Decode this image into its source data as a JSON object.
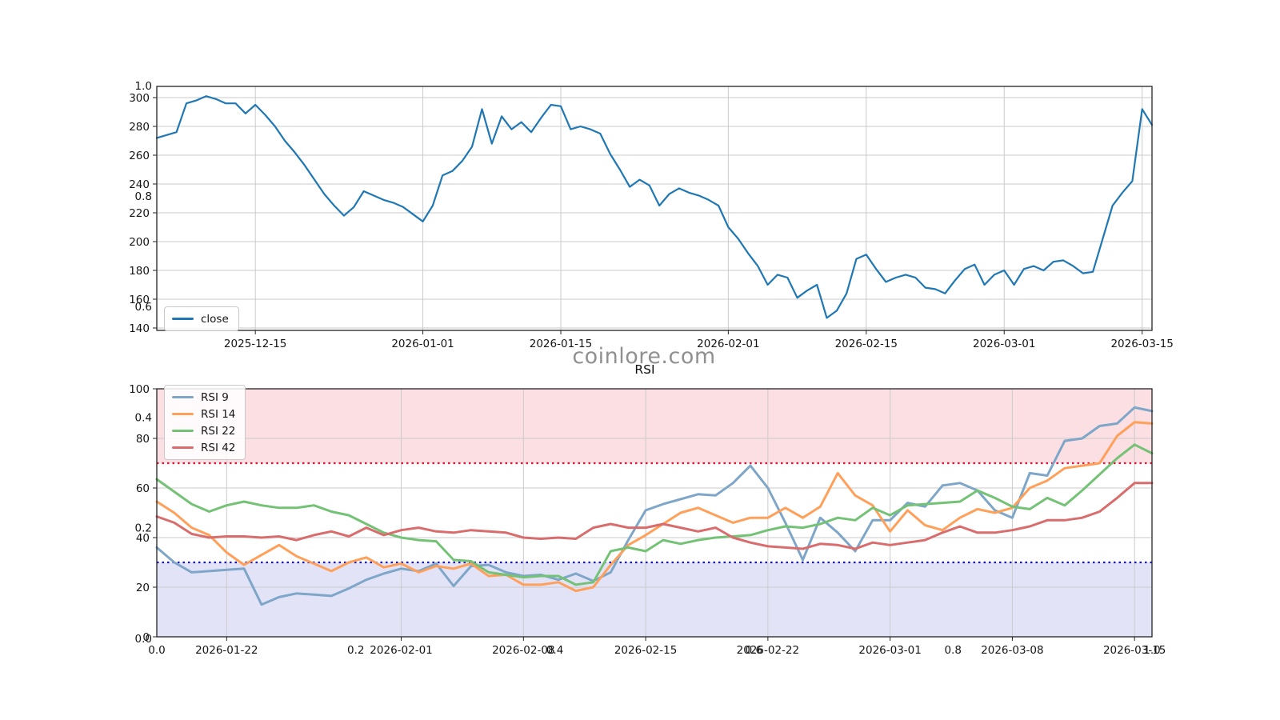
{
  "watermark": {
    "text": "coinlore.com"
  },
  "overlay_axis": {
    "y_labels": [
      "1.0",
      "0.8",
      "0.6",
      "0.4",
      "0.2",
      "0.0"
    ],
    "x_labels": [
      "0.0",
      "0.2",
      "0.4",
      "0.6",
      "0.8",
      "1.0"
    ]
  },
  "chart_data": [
    {
      "name": "price",
      "type": "line",
      "x_start": "2025-12-05",
      "x_end": "2026-03-16",
      "x_tick_labels": [
        "2025-12-15",
        "2026-01-01",
        "2026-01-15",
        "2026-02-01",
        "2026-02-15",
        "2026-03-01",
        "2026-03-15"
      ],
      "y_ticks": [
        140,
        160,
        180,
        200,
        220,
        240,
        260,
        280,
        300
      ],
      "ylim": [
        138,
        310
      ],
      "grid": true,
      "legend_position": "lower-left",
      "series": [
        {
          "name": "close",
          "color": "#1f77b4",
          "values": [
            272,
            274,
            276,
            296,
            298,
            301,
            299,
            296,
            296,
            289,
            295,
            288,
            280,
            270,
            262,
            253,
            243,
            233,
            225,
            218,
            224,
            235,
            232,
            229,
            227,
            224,
            219,
            214,
            225,
            246,
            249,
            256,
            266,
            292,
            268,
            287,
            278,
            283,
            276,
            286,
            295,
            294,
            278,
            280,
            278,
            275,
            261,
            250,
            238,
            243,
            239,
            225,
            233,
            237,
            234,
            232,
            229,
            225,
            210,
            202,
            192,
            183,
            170,
            177,
            175,
            161,
            166,
            170,
            147,
            152,
            164,
            188,
            191,
            181,
            172,
            175,
            177,
            175,
            168,
            167,
            164,
            173,
            181,
            184,
            170,
            177,
            180,
            170,
            181,
            183,
            180,
            186,
            187,
            183,
            178,
            179,
            202,
            225,
            234,
            242,
            292,
            281
          ]
        }
      ]
    },
    {
      "name": "rsi",
      "type": "line",
      "title": "RSI",
      "x_start": "2026-01-18",
      "x_end": "2026-03-16",
      "x_tick_labels": [
        "2026-01-22",
        "2026-02-01",
        "2026-02-08",
        "2026-02-15",
        "2026-02-22",
        "2026-03-01",
        "2026-03-08",
        "2026-03-15"
      ],
      "y_ticks": [
        0,
        20,
        40,
        60,
        80,
        100
      ],
      "ylim": [
        0,
        100
      ],
      "grid": true,
      "legend_position": "upper-left",
      "hlines": [
        {
          "value": 70,
          "color": "#e01230",
          "style": "dotted",
          "meaning": "overbought"
        },
        {
          "value": 30,
          "color": "#1515bb",
          "style": "dotted",
          "meaning": "oversold"
        }
      ],
      "bands": [
        {
          "from": 70,
          "to": 100,
          "color": "#fbdfe2",
          "meaning": "overbought-zone"
        },
        {
          "from": 0,
          "to": 30,
          "color": "#e3e3f8",
          "meaning": "oversold-zone"
        }
      ],
      "series": [
        {
          "name": "RSI 9",
          "color": "#7ea6c8",
          "values": [
            36,
            30,
            26,
            26.5,
            27,
            27.5,
            13,
            16,
            17.5,
            17,
            16.5,
            19.5,
            23,
            25.5,
            27.5,
            26.5,
            29.5,
            20.5,
            28.5,
            29,
            26,
            24.5,
            25,
            23,
            25.5,
            22.5,
            26,
            39,
            51,
            53.5,
            55.5,
            57.5,
            57,
            62,
            69,
            60,
            46,
            31,
            48,
            42,
            34.5,
            47,
            47,
            54,
            52.5,
            61,
            62,
            59,
            51,
            48,
            66,
            65,
            79,
            80,
            85,
            86,
            92.5,
            91
          ]
        },
        {
          "name": "RSI 14",
          "color": "#ffa05a",
          "values": [
            54.5,
            50,
            44,
            41,
            34,
            29,
            33,
            37,
            32.5,
            29.5,
            26.5,
            30,
            32,
            28,
            29.5,
            26,
            28.5,
            27.5,
            29.5,
            24.5,
            25,
            21,
            21,
            22,
            18.5,
            20,
            29,
            37,
            41,
            45.5,
            50,
            52,
            49,
            46,
            48,
            48,
            52,
            48,
            52.5,
            66,
            57,
            53,
            42.5,
            51,
            45,
            43,
            48,
            51.5,
            50,
            52,
            60,
            63,
            68,
            69,
            70,
            81,
            86.5,
            86
          ]
        },
        {
          "name": "RSI 22",
          "color": "#74c275",
          "values": [
            63.5,
            58.5,
            53.5,
            50.5,
            53,
            54.5,
            53,
            52,
            52,
            53,
            50.5,
            49,
            45.5,
            42,
            40,
            39,
            38.5,
            31,
            30.5,
            26,
            25,
            24,
            24.5,
            24.5,
            21,
            22,
            34.5,
            36,
            34.5,
            39,
            37.5,
            39,
            40,
            40.5,
            41,
            43,
            44.5,
            44,
            45.5,
            48,
            47,
            52,
            49,
            53,
            53.5,
            54,
            54.5,
            59,
            56,
            52.5,
            51.5,
            56,
            53,
            59,
            65.5,
            72,
            77.5,
            74
          ]
        },
        {
          "name": "RSI 42",
          "color": "#d96c6c",
          "values": [
            48.5,
            46,
            41.5,
            40,
            40.5,
            40.5,
            40,
            40.5,
            39,
            41,
            42.5,
            40.5,
            44,
            41,
            43,
            44,
            42.5,
            42,
            43,
            42.5,
            42,
            40,
            39.5,
            40,
            39.5,
            44,
            45.5,
            44,
            44,
            45.5,
            44,
            42.5,
            44,
            40,
            38,
            36.5,
            36,
            35.5,
            37.5,
            37,
            35.5,
            38,
            37,
            38,
            39,
            42,
            44.5,
            42,
            42,
            43,
            44.5,
            47,
            47,
            48,
            50.5,
            56,
            62,
            62
          ]
        }
      ]
    }
  ]
}
